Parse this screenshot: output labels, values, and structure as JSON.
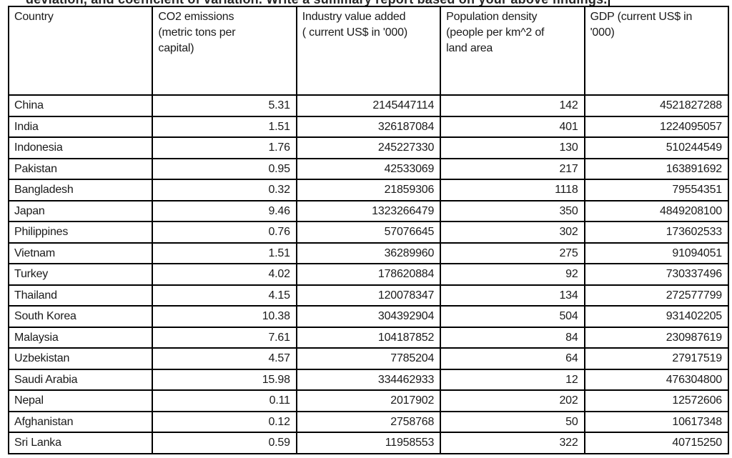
{
  "document": {
    "partial_paragraph": "deviation, and coefficient of variation. Write a summary report based on your above findings.",
    "cursor_glyph": "|",
    "text_color": "#262626",
    "border_color": "#000000"
  },
  "table": {
    "columns": [
      "Country",
      "CO2 emissions\n(metric tons per\ncapital)",
      "Industry value added\n( current US$ in '000)",
      "Population density\n(people per km^2 of\nland area",
      "GDP (current US$ in\n'000)"
    ],
    "rows": [
      [
        "China",
        "5.31",
        "2145447114",
        "142",
        "4521827288"
      ],
      [
        "India",
        "1.51",
        "326187084",
        "401",
        "1224095057"
      ],
      [
        "Indonesia",
        "1.76",
        "245227330",
        "130",
        "510244549"
      ],
      [
        "Pakistan",
        "0.95",
        "42533069",
        "217",
        "163891692"
      ],
      [
        "Bangladesh",
        "0.32",
        "21859306",
        "1118",
        "79554351"
      ],
      [
        "Japan",
        "9.46",
        "1323266479",
        "350",
        "4849208100"
      ],
      [
        "Philippines",
        "0.76",
        "57076645",
        "302",
        "173602533"
      ],
      [
        "Vietnam",
        "1.51",
        "36289960",
        "275",
        "91094051"
      ],
      [
        "Turkey",
        "4.02",
        "178620884",
        "92",
        "730337496"
      ],
      [
        "Thailand",
        "4.15",
        "120078347",
        "134",
        "272577799"
      ],
      [
        "South Korea",
        "10.38",
        "304392904",
        "504",
        "931402205"
      ],
      [
        "Malaysia",
        "7.61",
        "104187852",
        "84",
        "230987619"
      ],
      [
        "Uzbekistan",
        "4.57",
        "7785204",
        "64",
        "27917519"
      ],
      [
        "Saudi Arabia",
        "15.98",
        "334462933",
        "12",
        "476304800"
      ],
      [
        "Nepal",
        "0.11",
        "2017902",
        "202",
        "12572606"
      ],
      [
        "Afghanistan",
        "0.12",
        "2758768",
        "50",
        "10617348"
      ],
      [
        "Sri Lanka",
        "0.59",
        "11958553",
        "322",
        "40715250"
      ]
    ]
  }
}
